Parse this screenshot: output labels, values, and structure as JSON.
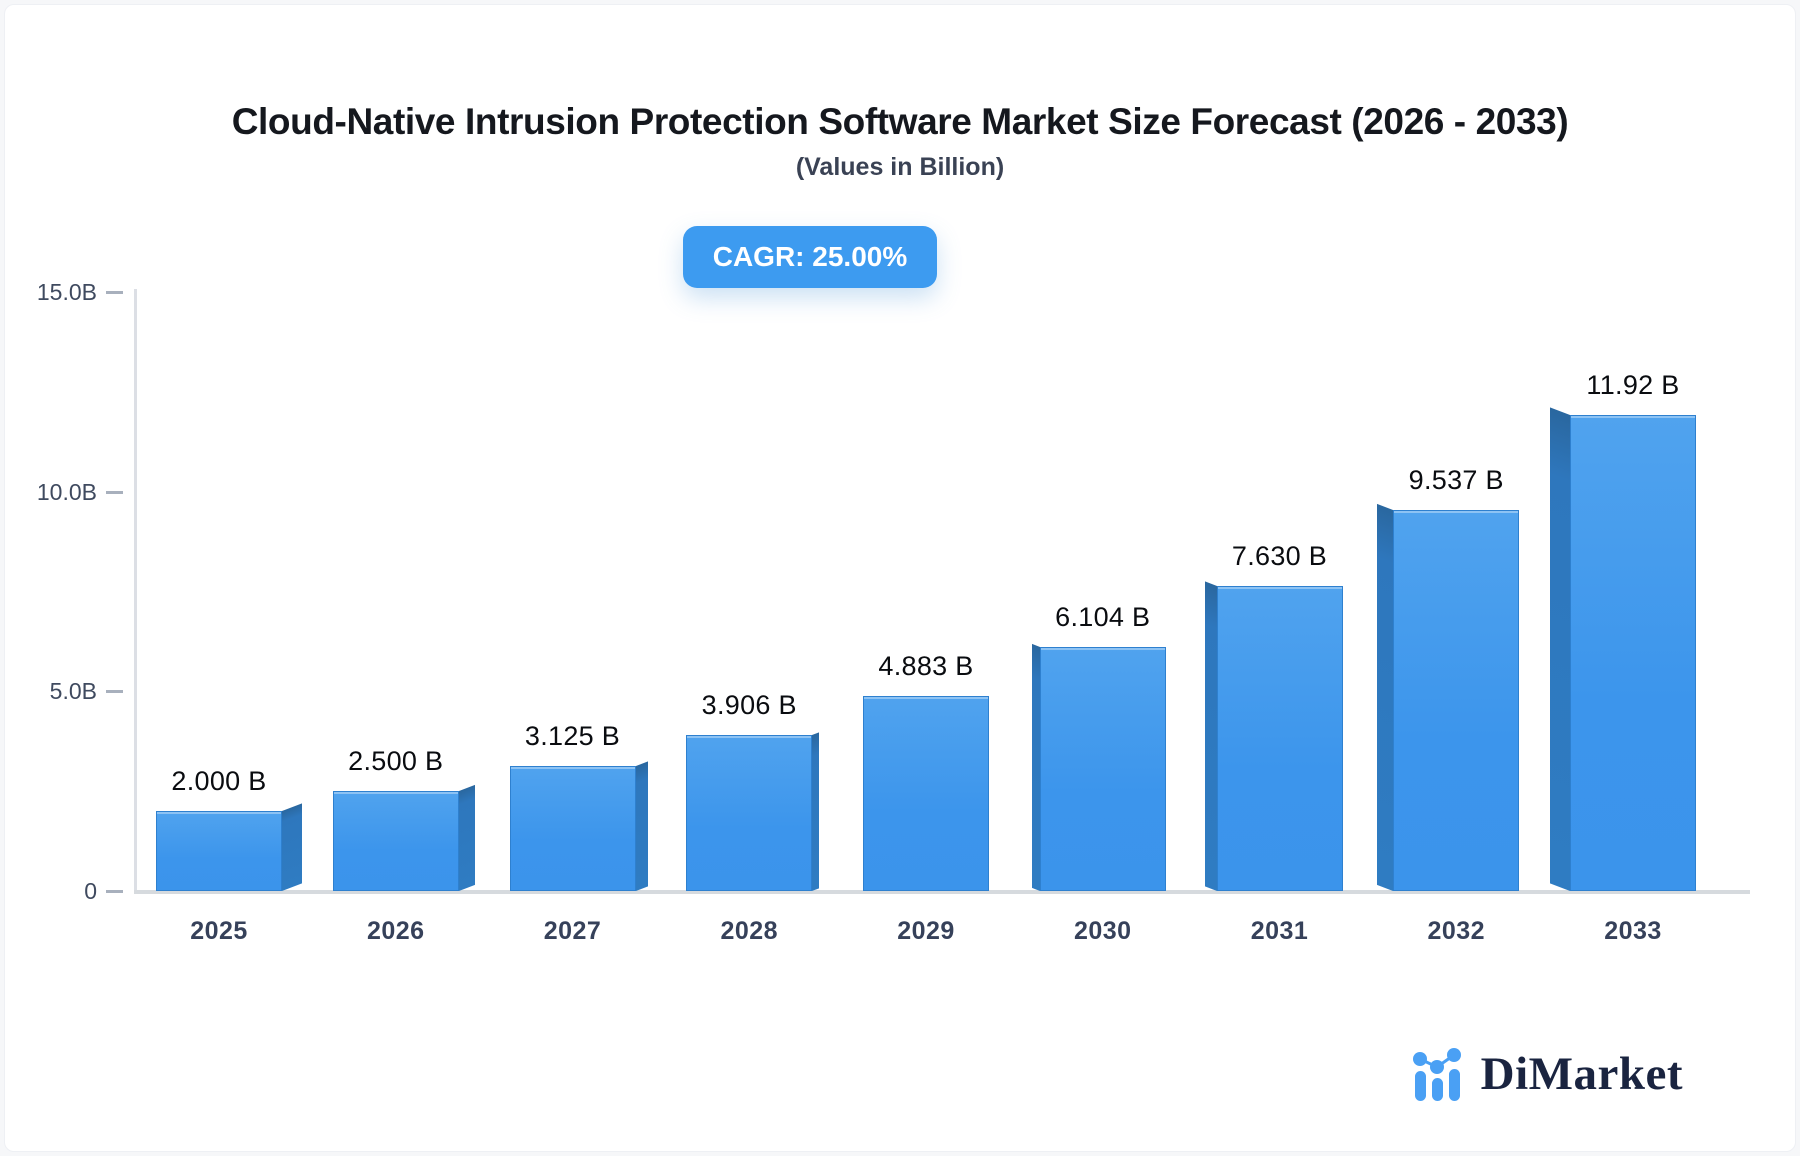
{
  "title": "Cloud-Native Intrusion Protection Software Market Size Forecast (2026 - 2033)",
  "subtitle": "(Values in Billion)",
  "badge": {
    "label": "CAGR: 25.00%"
  },
  "brand": {
    "name": "DiMarket"
  },
  "colors": {
    "accent": "#3d9bf0",
    "bar_front_top": "#50a3ee",
    "bar_front_bottom": "#3b94eb",
    "bar_side": "#2e77bd",
    "axis": "#d6dade",
    "tick_text": "#3f4a5f",
    "year_text": "#36415a",
    "value_text": "#0a0c10",
    "title_text": "#15181e",
    "logo_blue": "#4aa0f4",
    "logo_navy": "#1a2440"
  },
  "chart_data": {
    "type": "bar",
    "title": "Cloud-Native Intrusion Protection Software Market Size Forecast (2026 - 2033)",
    "subtitle": "(Values in Billion)",
    "cagr": "25.00%",
    "categories": [
      "2025",
      "2026",
      "2027",
      "2028",
      "2029",
      "2030",
      "2031",
      "2032",
      "2033"
    ],
    "values": [
      2.0,
      2.5,
      3.125,
      3.906,
      4.883,
      6.104,
      7.63,
      9.537,
      11.92
    ],
    "value_labels": [
      "2.000 B",
      "2.500 B",
      "3.125 B",
      "3.906 B",
      "4.883 B",
      "6.104 B",
      "7.630 B",
      "9.537 B",
      "11.92 B"
    ],
    "xlabel": "",
    "ylabel": "",
    "ylim": [
      0,
      15
    ],
    "y_ticks": [
      {
        "value": 15,
        "label": "15.0B"
      },
      {
        "value": 10,
        "label": "10.0B"
      },
      {
        "value": 5,
        "label": "5.0B"
      },
      {
        "value": 0,
        "label": "0"
      }
    ],
    "grid": false,
    "legend": "none",
    "bar_style": "3d-perspective-center-vanishing"
  }
}
